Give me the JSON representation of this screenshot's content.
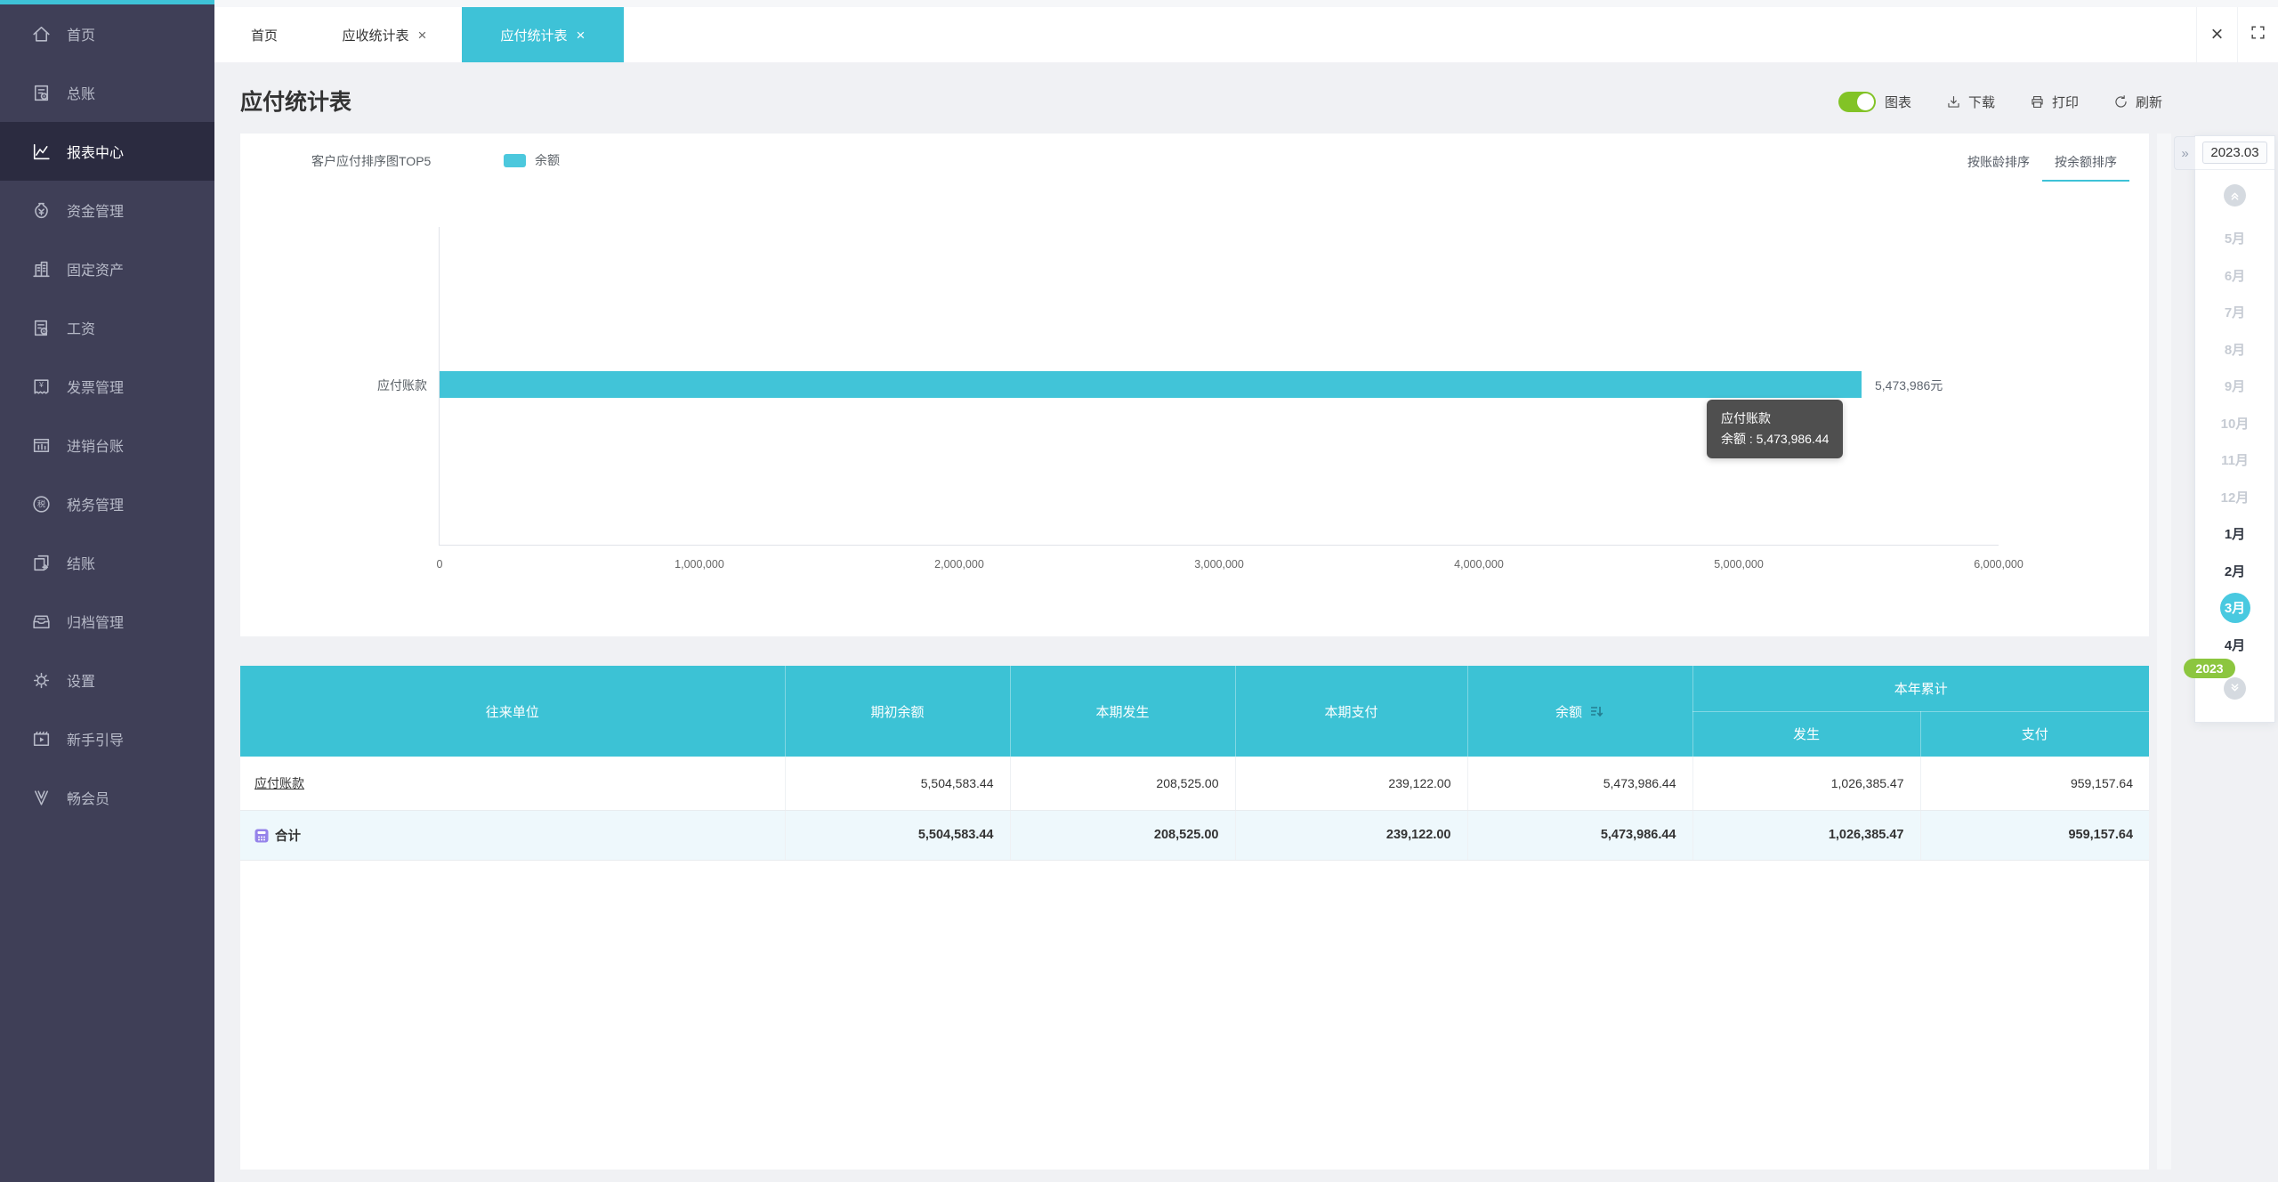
{
  "colors": {
    "accent_teal": "#3ec2d7",
    "bar_teal": "#41c4d8",
    "table_header_teal": "#3cc2d5",
    "sidebar_bg": "#3f3f57",
    "sidebar_active_bg": "#2b2b40",
    "toggle_green": "#82c326",
    "badge_green": "#8cc63f",
    "page_bg": "#f0f1f4",
    "total_row_bg": "#eef8fc"
  },
  "sidebar": {
    "items": [
      {
        "key": "home",
        "label": "首页",
        "icon": "home-icon",
        "active": false
      },
      {
        "key": "general-ledger",
        "label": "总账",
        "icon": "ledger-icon",
        "active": false
      },
      {
        "key": "report-center",
        "label": "报表中心",
        "icon": "report-chart-icon",
        "active": true
      },
      {
        "key": "fund-mgmt",
        "label": "资金管理",
        "icon": "money-bag-icon",
        "active": false
      },
      {
        "key": "fixed-assets",
        "label": "固定资产",
        "icon": "building-icon",
        "active": false
      },
      {
        "key": "salary",
        "label": "工资",
        "icon": "payroll-icon",
        "active": false
      },
      {
        "key": "invoice-mgmt",
        "label": "发票管理",
        "icon": "invoice-icon",
        "active": false
      },
      {
        "key": "trade-ledger",
        "label": "进销台账",
        "icon": "trade-ledger-icon",
        "active": false
      },
      {
        "key": "tax-mgmt",
        "label": "税务管理",
        "icon": "tax-icon",
        "active": false
      },
      {
        "key": "closing",
        "label": "结账",
        "icon": "closing-icon",
        "active": false
      },
      {
        "key": "archive-mgmt",
        "label": "归档管理",
        "icon": "archive-icon",
        "active": false
      },
      {
        "key": "settings",
        "label": "设置",
        "icon": "gear-icon",
        "active": false
      },
      {
        "key": "beginner-guide",
        "label": "新手引导",
        "icon": "guide-play-icon",
        "active": false
      },
      {
        "key": "member",
        "label": "畅会员",
        "icon": "member-v-icon",
        "active": false
      }
    ]
  },
  "tabbar": {
    "tabs": [
      {
        "key": "home",
        "label": "首页",
        "closable": false,
        "active": false
      },
      {
        "key": "receivable-stats",
        "label": "应收统计表",
        "closable": true,
        "active": false
      },
      {
        "key": "payable-stats",
        "label": "应付统计表",
        "closable": true,
        "active": true
      }
    ],
    "close_glyph": "×"
  },
  "window": {
    "close_glyph": "×"
  },
  "header": {
    "title": "应付统计表",
    "chart_toggle": {
      "label": "图表",
      "on": true
    },
    "actions": [
      {
        "key": "download",
        "label": "下载",
        "icon": "download-icon"
      },
      {
        "key": "print",
        "label": "打印",
        "icon": "print-icon"
      },
      {
        "key": "refresh",
        "label": "刷新",
        "icon": "refresh-icon"
      }
    ]
  },
  "chart": {
    "title": "客户应付排序图TOP5",
    "legend_label": "余额",
    "sort_links": [
      {
        "key": "by-aging",
        "label": "按账龄排序",
        "active": false
      },
      {
        "key": "by-balance",
        "label": "按余额排序",
        "active": true
      }
    ],
    "chart_data": {
      "type": "bar",
      "orientation": "horizontal",
      "categories": [
        "应付账款"
      ],
      "series": [
        {
          "name": "余额",
          "values": [
            5473986.44
          ]
        }
      ],
      "xlim": [
        0,
        6000000
      ],
      "x_ticks": [
        "0",
        "1,000,000",
        "2,000,000",
        "3,000,000",
        "4,000,000",
        "5,000,000",
        "6,000,000"
      ],
      "value_label": "5,473,986元",
      "grid": false,
      "legend_position": "top"
    },
    "tooltip": {
      "title": "应付账款",
      "line": "余额 : 5,473,986.44"
    }
  },
  "month_panel": {
    "current_period": "2023.03",
    "collapse_glyph": "»",
    "year_badge": "2023",
    "months": [
      {
        "key": "m5",
        "label": "5月",
        "state": "disabled"
      },
      {
        "key": "m6",
        "label": "6月",
        "state": "disabled"
      },
      {
        "key": "m7",
        "label": "7月",
        "state": "disabled"
      },
      {
        "key": "m8",
        "label": "8月",
        "state": "disabled"
      },
      {
        "key": "m9",
        "label": "9月",
        "state": "disabled"
      },
      {
        "key": "m10",
        "label": "10月",
        "state": "disabled"
      },
      {
        "key": "m11",
        "label": "11月",
        "state": "disabled"
      },
      {
        "key": "m12",
        "label": "12月",
        "state": "disabled"
      },
      {
        "key": "m1",
        "label": "1月",
        "state": "normal"
      },
      {
        "key": "m2",
        "label": "2月",
        "state": "normal"
      },
      {
        "key": "m3",
        "label": "3月",
        "state": "active"
      },
      {
        "key": "m4",
        "label": "4月",
        "state": "normal"
      }
    ]
  },
  "table": {
    "headers": {
      "unit": "往来单位",
      "opening_balance": "期初余额",
      "current_incurred": "本期发生",
      "current_paid": "本期支付",
      "balance": "余额",
      "ytd": "本年累计",
      "ytd_incurred": "发生",
      "ytd_paid": "支付"
    },
    "rows": [
      {
        "name": "应付账款",
        "values": [
          "5,504,583.44",
          "208,525.00",
          "239,122.00",
          "5,473,986.44",
          "1,026,385.47",
          "959,157.64"
        ]
      }
    ],
    "total": {
      "name": "合计",
      "values": [
        "5,504,583.44",
        "208,525.00",
        "239,122.00",
        "5,473,986.44",
        "1,026,385.47",
        "959,157.64"
      ]
    }
  }
}
